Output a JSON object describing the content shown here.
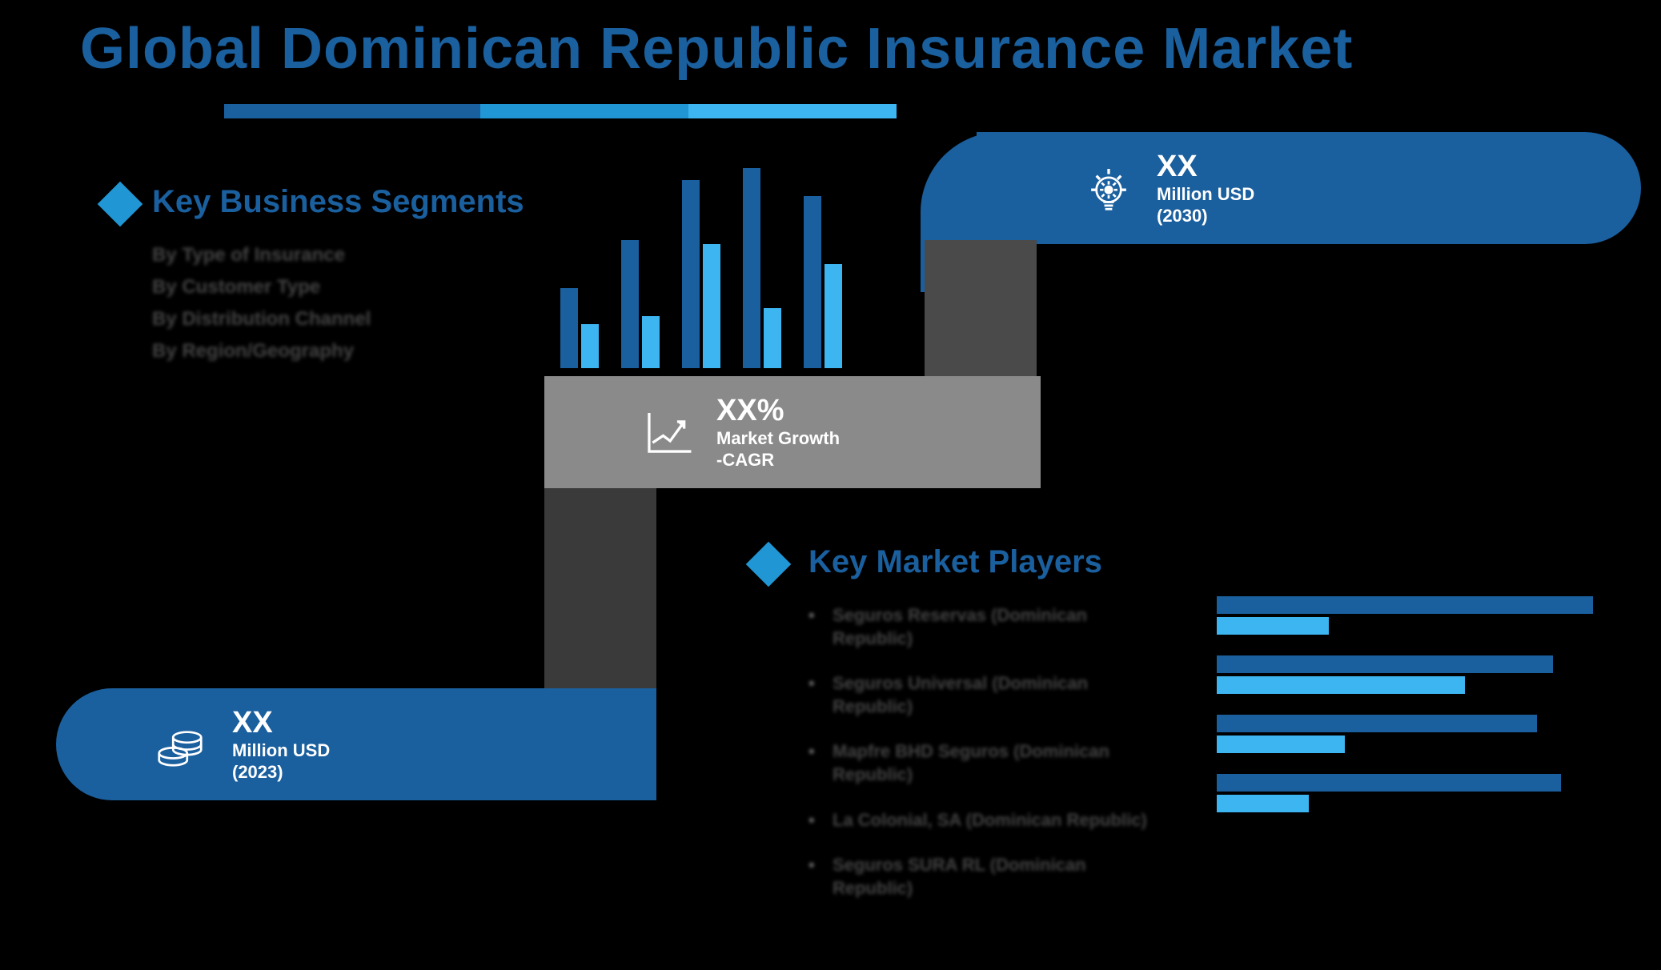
{
  "title": "Global Dominican Republic Insurance Market",
  "title_color": "#1a5f9e",
  "title_bar_colors": [
    "#1a5f9e",
    "#2196d4",
    "#3db5f0"
  ],
  "title_bar_widths": [
    320,
    260,
    260
  ],
  "kbs": {
    "heading": "Key Business Segments",
    "heading_color": "#1a5f9e",
    "diamond_color": "#2196d4",
    "items": [
      "By Type of Insurance",
      "By Customer Type",
      "By Distribution Channel",
      "By Region/Geography"
    ]
  },
  "barchart": {
    "colors": {
      "a": "#1a5f9e",
      "b": "#3db5f0"
    },
    "groups": [
      {
        "a": 100,
        "b": 55
      },
      {
        "a": 160,
        "b": 65
      },
      {
        "a": 235,
        "b": 155
      },
      {
        "a": 250,
        "b": 75
      },
      {
        "a": 215,
        "b": 130
      }
    ]
  },
  "ribbon": {
    "top": {
      "color": "#1a5f9e",
      "value": "XX",
      "label": "Million USD\n(2030)"
    },
    "mid": {
      "color": "#8a8a8a",
      "value": "XX%",
      "label": "Market Growth\n-CAGR"
    },
    "bottom": {
      "color": "#1a5f9e",
      "value": "XX",
      "label": "Million USD\n(2023)"
    }
  },
  "kmp": {
    "heading": "Key Market Players",
    "heading_color": "#1a5f9e",
    "diamond_color": "#2196d4",
    "items": [
      "Seguros Reservas (Dominican Republic)",
      "Seguros Universal (Dominican Republic)",
      "Mapfre BHD Seguros (Dominican Republic)",
      "La Colonial, SA (Dominican Republic)",
      "Seguros SURA RL (Dominican Republic)"
    ]
  },
  "hbars": {
    "colors": {
      "a": "#1a5f9e",
      "b": "#3db5f0"
    },
    "groups": [
      {
        "a": 470,
        "b": 140
      },
      {
        "a": 420,
        "b": 310
      },
      {
        "a": 400,
        "b": 160
      },
      {
        "a": 430,
        "b": 115
      }
    ]
  }
}
